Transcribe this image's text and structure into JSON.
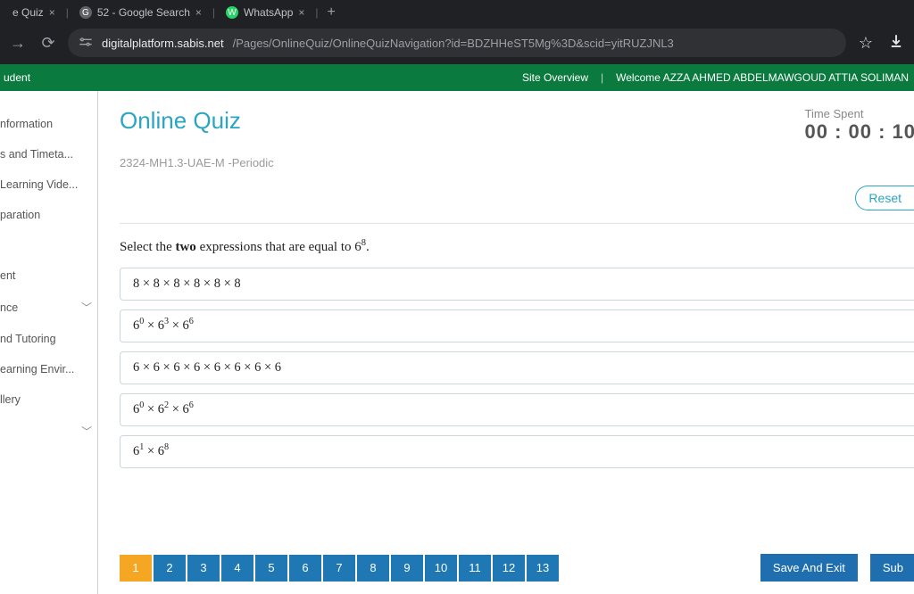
{
  "browser": {
    "tabs": [
      {
        "label": "e Quiz",
        "favicon": ""
      },
      {
        "label": "52 - Google Search",
        "favicon": "G"
      },
      {
        "label": "WhatsApp",
        "favicon": "W"
      }
    ],
    "url_host": "digitalplatform.sabis.net",
    "url_path": "/Pages/OnlineQuiz/OnlineQuizNavigation?id=BDZHHeST5Mg%3D&scid=yitRUZJNL3"
  },
  "header": {
    "left": "udent",
    "overview": "Site Overview",
    "welcome": "Welcome AZZA AHMED ABDELMAWGOUD ATTIA SOLIMAN"
  },
  "sidebar": {
    "items": [
      {
        "label": "nformation",
        "chev": false
      },
      {
        "label": "s and Timeta...",
        "chev": false
      },
      {
        "label": "Learning Vide...",
        "chev": false
      },
      {
        "label": "paration",
        "chev": false
      },
      {
        "label": "ent",
        "chev": false,
        "gap": true
      },
      {
        "label": "nce",
        "chev": true
      },
      {
        "label": "nd Tutoring",
        "chev": false
      },
      {
        "label": "earning Envir...",
        "chev": false
      },
      {
        "label": "llery",
        "chev": false
      },
      {
        "label": "",
        "chev": true
      }
    ]
  },
  "quiz": {
    "title": "Online Quiz",
    "subtitle": "2324-MH1.3-UAE-M -Periodic",
    "timer_label": "Time Spent",
    "timer_value": "00 : 00 : 10",
    "reset_label": "Reset",
    "question_prefix": "Select the ",
    "question_bold": "two",
    "question_suffix1": " expressions that are equal to 6",
    "question_exp": "8",
    "question_suffix2": ".",
    "answers_html": [
      "8 × 8 × 8 × 8 × 8 × 8",
      "6<sup>0</sup> × 6<sup>3</sup> × 6<sup>6</sup>",
      "6 × 6 × 6 × 6 × 6 × 6 × 6 × 6",
      "6<sup>0</sup> × 6<sup>2</sup> × 6<sup>6</sup>",
      "6<sup>1</sup> × 6<sup>8</sup>"
    ],
    "pages": [
      "1",
      "2",
      "3",
      "4",
      "5",
      "6",
      "7",
      "8",
      "9",
      "10",
      "11",
      "12",
      "13"
    ],
    "active_page": "1",
    "save_label": "Save And Exit",
    "submit_label": "Sub"
  },
  "colors": {
    "accent_teal": "#2aa5c4",
    "header_green": "#0a7a3f",
    "pager_blue": "#1f78b4",
    "pager_active": "#f5a623",
    "btn_primary": "#1f6fb0"
  }
}
